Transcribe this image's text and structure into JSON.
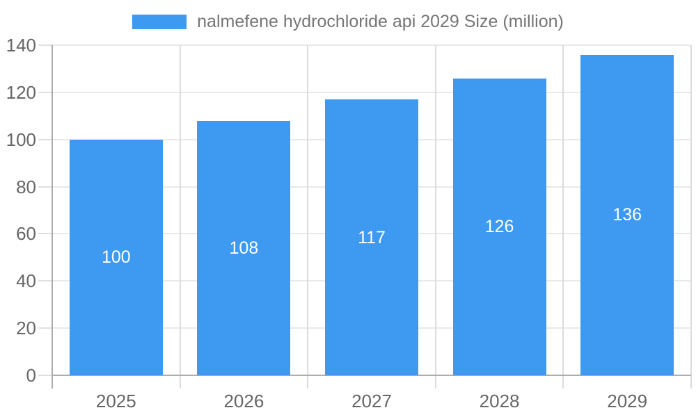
{
  "legend": {
    "label": "nalmefene hydrochloride api 2029 Size (million)"
  },
  "chart_data": {
    "type": "bar",
    "title": "",
    "categories": [
      "2025",
      "2026",
      "2027",
      "2028",
      "2029"
    ],
    "values": [
      100,
      108,
      117,
      126,
      136
    ],
    "series": [
      {
        "name": "nalmefene hydrochloride api 2029 Size (million)",
        "values": [
          100,
          108,
          117,
          126,
          136
        ]
      }
    ],
    "xlabel": "",
    "ylabel": "",
    "ylim": [
      0,
      140
    ],
    "yticks": [
      0,
      20,
      40,
      60,
      80,
      100,
      120,
      140
    ],
    "grid": true,
    "legend_position": "top",
    "value_label_position": "inside-center",
    "colors": {
      "bar": "#3D9AF0",
      "grid_horizontal": "#e9e9e9",
      "grid_vertical": "#dcdcdc",
      "axis_line": "#adadad",
      "y_tick": "#e0e0e0",
      "axis_text": "#666666",
      "legend_text": "#757575",
      "value_text": "#ffffff"
    }
  }
}
